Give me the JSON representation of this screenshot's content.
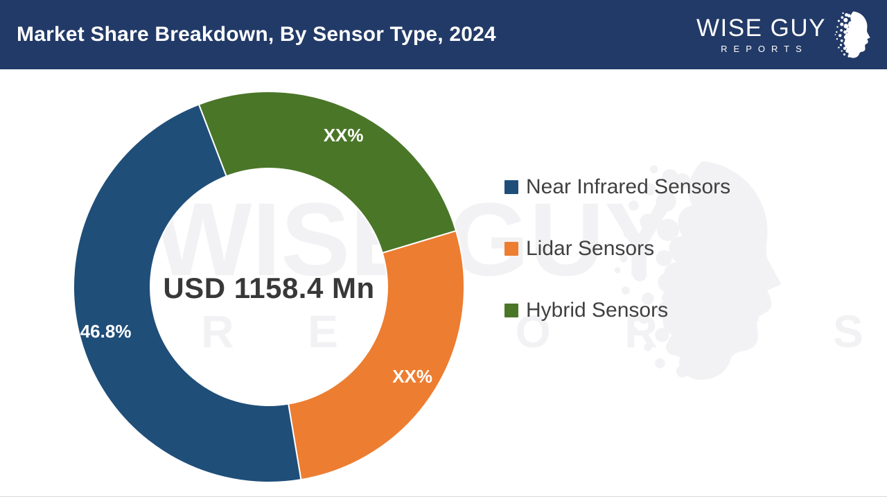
{
  "header": {
    "title": "Market Share Breakdown, By Sensor Type, 2024",
    "logo": {
      "line1": "WISE GUY",
      "line2": "REPORTS"
    }
  },
  "watermark": {
    "line1": "WISE GUY",
    "line2": "R E P O R T S"
  },
  "colors": {
    "header_bg": "#223a67",
    "blue": "#1f4e79",
    "orange": "#ed7d31",
    "green": "#4a7628",
    "center_text": "#383838",
    "legend_text": "#404040",
    "watermark": "#f2f2f4",
    "slice_label": "#ffffff"
  },
  "chart_data": {
    "type": "pie",
    "subtype": "donut",
    "title": "Market Share Breakdown, By Sensor Type, 2024",
    "center_label": "USD 1158.4 Mn",
    "total_value": "USD 1158.4 Mn",
    "year": "2024",
    "start_angle_deg": -21,
    "legend_position": "right",
    "slices": [
      {
        "name": "Hybrid Sensors",
        "label": "XX%",
        "share_pct": 26.2,
        "color": "#4a7628"
      },
      {
        "name": "Lidar Sensors",
        "label": "XX%",
        "share_pct": 27.0,
        "color": "#ed7d31"
      },
      {
        "name": "Near Infrared Sensors",
        "label": "46.8%",
        "share_pct": 46.8,
        "color": "#1f4e79"
      }
    ],
    "legend": [
      {
        "label": "Near Infrared Sensors",
        "color": "#1f4e79"
      },
      {
        "label": "Lidar Sensors",
        "color": "#ed7d31"
      },
      {
        "label": "Hybrid Sensors",
        "color": "#4a7628"
      }
    ]
  }
}
